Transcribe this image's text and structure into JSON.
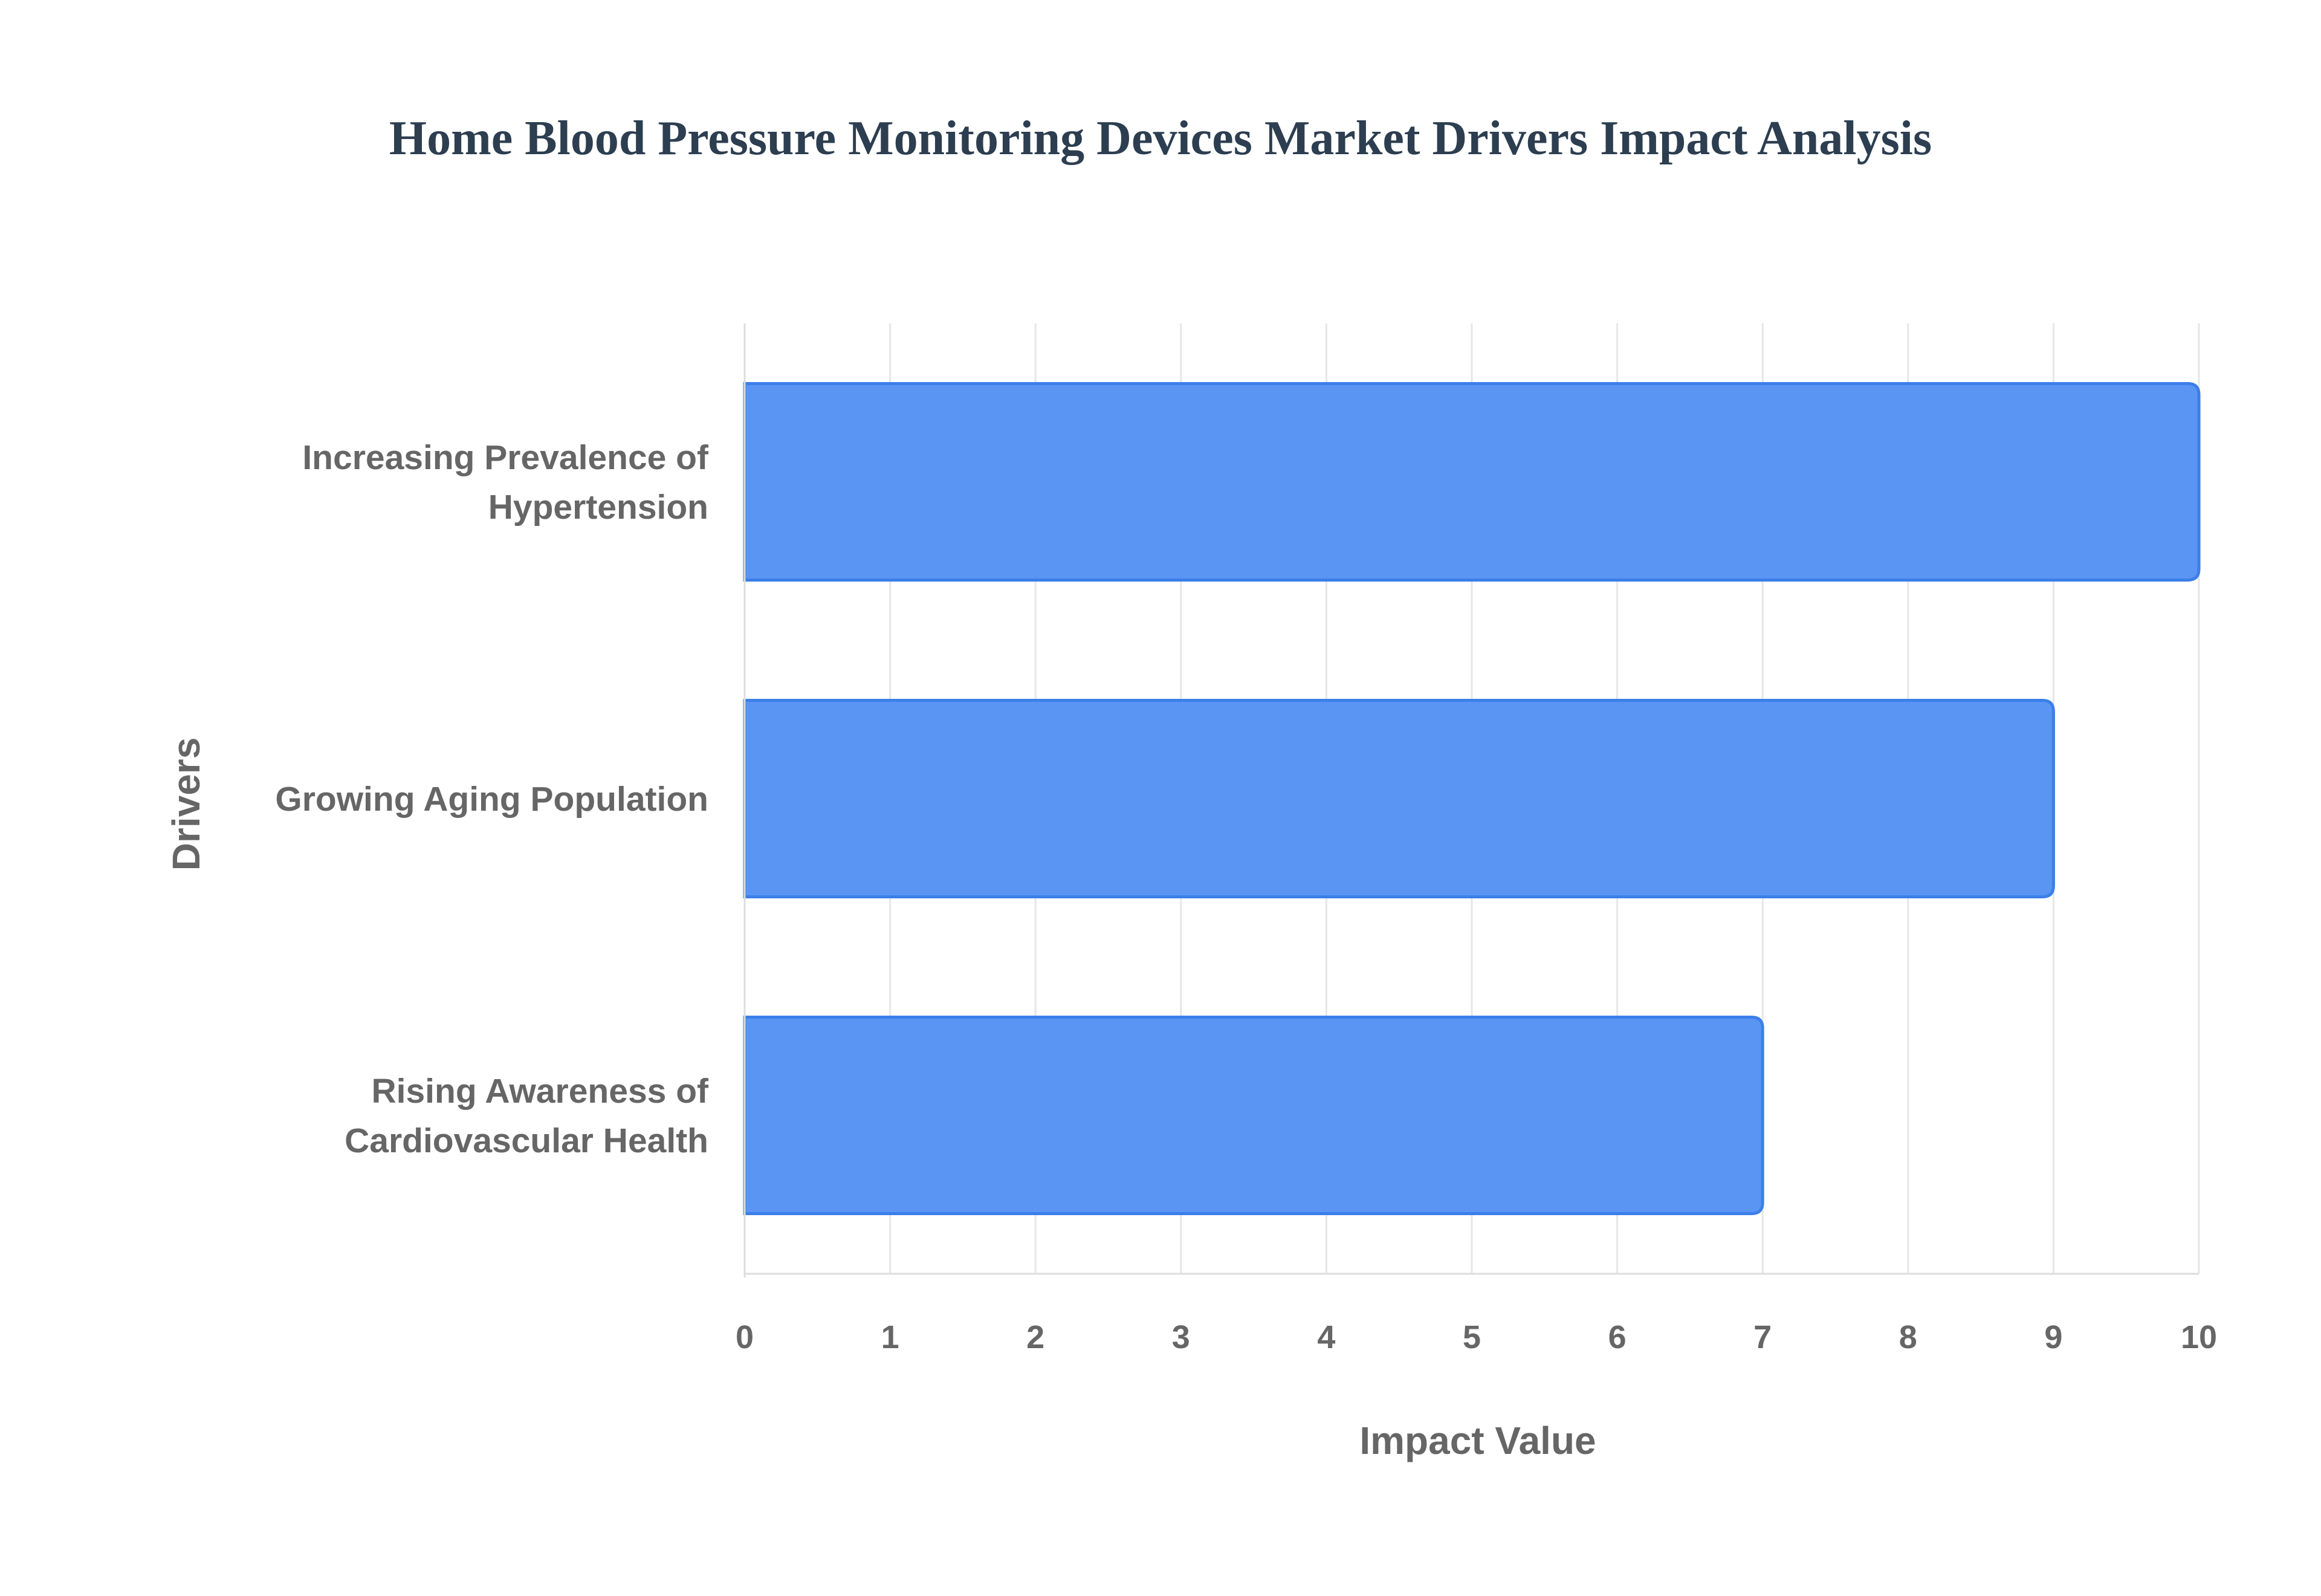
{
  "chart_data": {
    "type": "bar",
    "orientation": "horizontal",
    "title": "Home Blood Pressure Monitoring Devices Market Drivers Impact Analysis",
    "xlabel": "Impact Value",
    "ylabel": "Drivers",
    "categories": [
      [
        "Increasing Prevalence of",
        "Hypertension"
      ],
      [
        "Growing Aging Population"
      ],
      [
        "Rising Awareness of",
        "Cardiovascular Health"
      ]
    ],
    "values": [
      10,
      9,
      7
    ],
    "xlim": [
      0,
      10
    ],
    "xticks": [
      "0",
      "1",
      "2",
      "3",
      "4",
      "5",
      "6",
      "7",
      "8",
      "9",
      "10"
    ],
    "grid": true,
    "legend": "none",
    "colors": {
      "bar_fill": "#5b95f4",
      "bar_stroke": "#3b7fe8",
      "title": "#2c3e50",
      "text": "#666666"
    }
  }
}
